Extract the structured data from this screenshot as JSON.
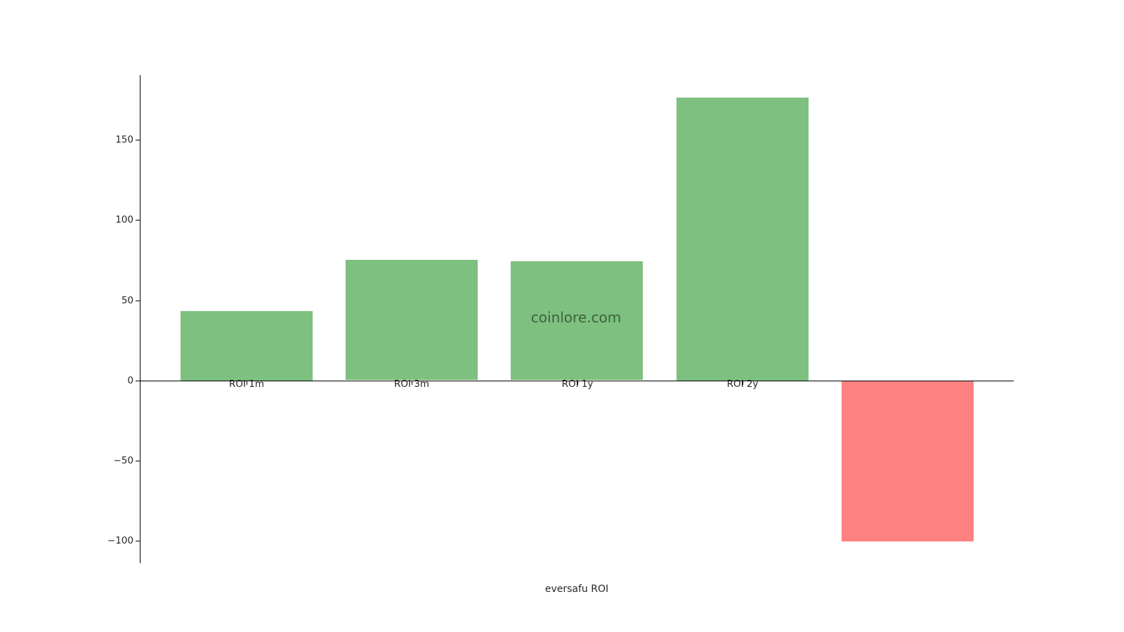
{
  "chart_data": {
    "type": "bar",
    "title": "",
    "xlabel": "eversafu ROI",
    "ylabel": "",
    "categories": [
      "ROI 1m",
      "ROI 3m",
      "ROI 1y",
      "ROI 2y",
      ""
    ],
    "values": [
      43.4,
      75,
      74.1,
      176.3,
      -100
    ],
    "yticks": [
      150,
      100,
      50,
      0,
      -50,
      -100
    ],
    "ylim": [
      -113.8,
      190.2
    ],
    "xlim": [
      -0.64,
      4.64
    ],
    "bar_width": 0.8,
    "grid": false,
    "legend_position": "none",
    "positive_color": "#7dc07f",
    "negative_color": "#fd8181",
    "axis_color": "#000000",
    "tick_label_color": "#262626"
  },
  "watermark": {
    "text": "coinlore.com"
  }
}
